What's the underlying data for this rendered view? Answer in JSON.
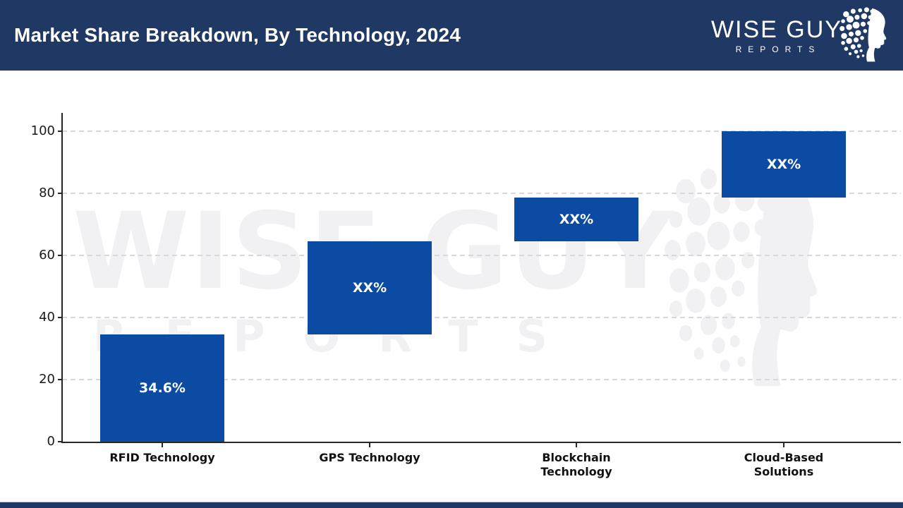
{
  "header": {
    "title": "Market Share Breakdown, By Technology, 2024",
    "brand": {
      "wordmark": "WISE GUY",
      "reports": "REPORTS",
      "head_icon": "dotted-head-profile",
      "bg_color": "#203864",
      "text_color": "#ffffff"
    }
  },
  "watermark": {
    "line1": "WISE GUY",
    "line2": "REPORTS",
    "head_icon": "dotted-head-profile",
    "color": "#f1f1f3"
  },
  "chart_data": {
    "type": "bar",
    "subtype": "waterfall",
    "title": "Market Share Breakdown, By Technology, 2024",
    "categories": [
      "RFID Technology",
      "GPS Technology",
      "Blockchain\nTechnology",
      "Cloud-Based\nSolutions"
    ],
    "series": [
      {
        "name": "Market Share (%)",
        "bases": [
          0,
          34.6,
          64.6,
          78.6
        ],
        "values": [
          34.6,
          30,
          14,
          21.4
        ],
        "tops": [
          34.6,
          64.6,
          78.6,
          100
        ]
      }
    ],
    "bar_labels": [
      "34.6%",
      "XX%",
      "XX%",
      "XX%"
    ],
    "ylim": [
      0,
      100
    ],
    "yticks": [
      0,
      20,
      40,
      60,
      80,
      100
    ],
    "xlabel": "",
    "ylabel": "",
    "grid": "horizontal-dashed",
    "legend": "none",
    "bar_color": "#0c4ba3",
    "bar_label_color": "#ffffff",
    "gridline_color": "#d8d8d8",
    "axis_color": "#262626"
  }
}
